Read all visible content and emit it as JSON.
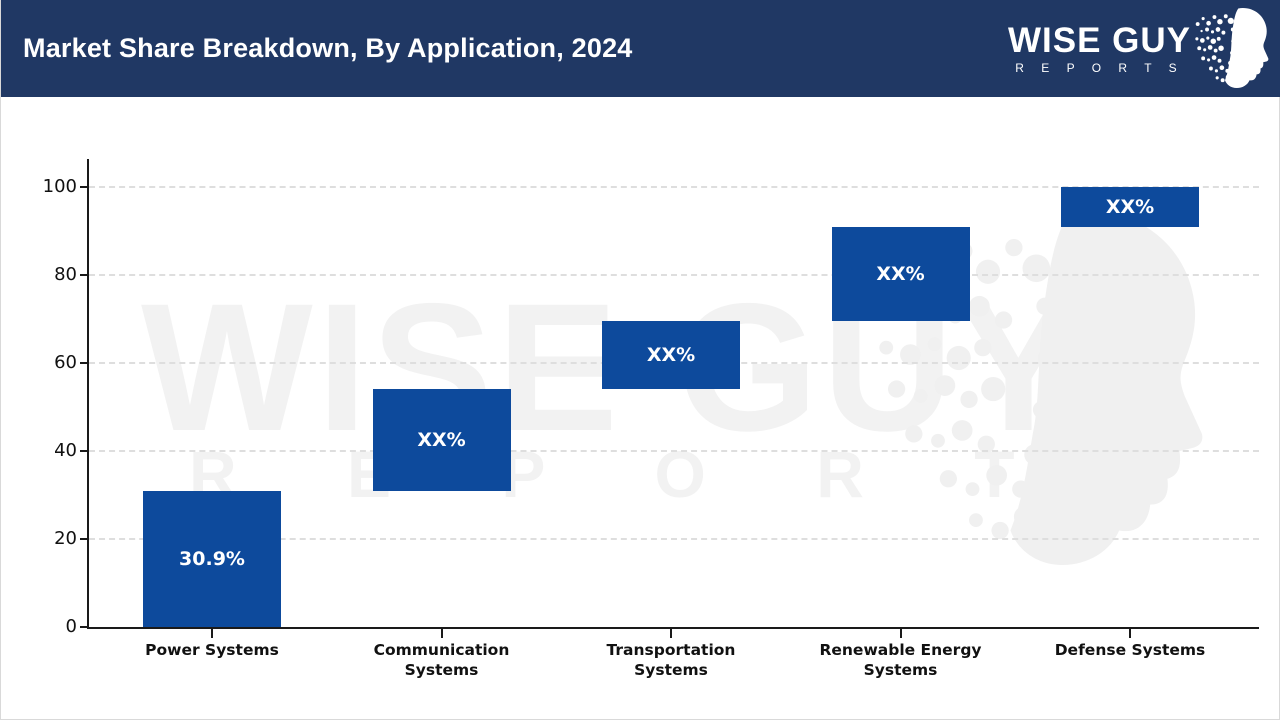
{
  "header": {
    "title": "Market Share Breakdown, By Application, 2024",
    "background": "#203864",
    "logo": {
      "wordmark": "WISE GUY",
      "subtext": "R E P O R T S"
    }
  },
  "watermark": {
    "line1": "WISE GUY",
    "line2": "R E P O R T S"
  },
  "chart_data": {
    "type": "bar",
    "subtype": "waterfall",
    "title": "Market Share Breakdown, By Application, 2024",
    "categories": [
      "Power Systems",
      "Communication Systems",
      "Transportation Systems",
      "Renewable Energy Systems",
      "Defense Systems"
    ],
    "category_labels_wrapped": [
      "Power Systems",
      "Communication\nSystems",
      "Transportation\nSystems",
      "Renewable Energy\nSystems",
      "Defense Systems"
    ],
    "series": [
      {
        "name": "Market share (%)",
        "starts": [
          0,
          30.9,
          54,
          69.5,
          91
        ],
        "ends": [
          30.9,
          54,
          69.5,
          91,
          100
        ]
      }
    ],
    "bar_labels": [
      "30.9%",
      "XX%",
      "XX%",
      "XX%",
      "XX%"
    ],
    "bar_color": "#0d4a9c",
    "label_color": "#ffffff",
    "ylim": [
      0,
      100
    ],
    "yticks": [
      0,
      20,
      40,
      60,
      80,
      100
    ],
    "grid": "horizontal-dashed",
    "legend": "none"
  }
}
